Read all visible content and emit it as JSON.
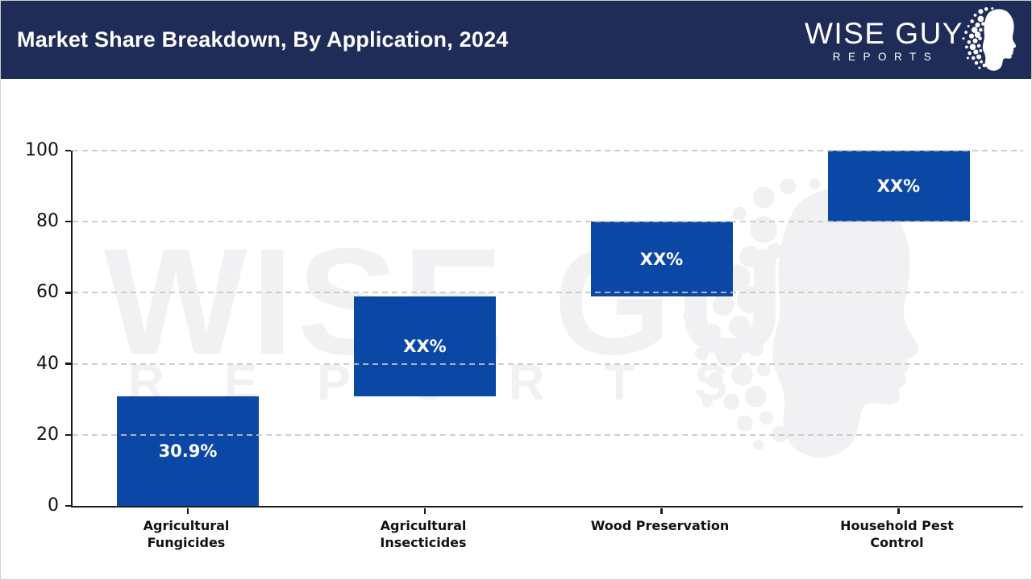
{
  "header": {
    "title": "Market Share Breakdown, By Application, 2024",
    "bg_color": "#202c58",
    "logo": {
      "line1": "WISE GUY",
      "line2": "REPORTS"
    }
  },
  "watermark": {
    "line1": "WISE GUY",
    "line2": "REPORTS"
  },
  "chart_data": {
    "type": "bar",
    "subtype": "waterfall",
    "title": "Market Share Breakdown, By Application, 2024",
    "categories": [
      "Agricultural Fungicides",
      "Agricultural Insecticides",
      "Wood Preservation",
      "Household Pest Control"
    ],
    "category_label_lines": [
      [
        "Agricultural",
        "Fungicides"
      ],
      [
        "Agricultural",
        "Insecticides"
      ],
      [
        "Wood Preservation"
      ],
      [
        "Household Pest",
        "Control"
      ]
    ],
    "series": [
      {
        "name": "Market Share",
        "segments": [
          {
            "category": "Agricultural Fungicides",
            "start": 0,
            "end": 30.9,
            "label": "30.9%"
          },
          {
            "category": "Agricultural Insecticides",
            "start": 30.9,
            "end": 59.0,
            "label": "XX%"
          },
          {
            "category": "Wood Preservation",
            "start": 59.0,
            "end": 80.0,
            "label": "XX%"
          },
          {
            "category": "Household Pest Control",
            "start": 80.0,
            "end": 100.0,
            "label": "XX%"
          }
        ]
      }
    ],
    "xlabel": "",
    "ylabel": "",
    "ylim": [
      0,
      100
    ],
    "yticks": [
      0,
      20,
      40,
      60,
      80,
      100
    ],
    "grid": "horizontal-dashed",
    "legend": "none",
    "bar_color": "#0b48a6",
    "bar_label_color": "#ffffff",
    "axis_color": "#1a1a1a",
    "gridline_color": "#c6c6c6"
  }
}
